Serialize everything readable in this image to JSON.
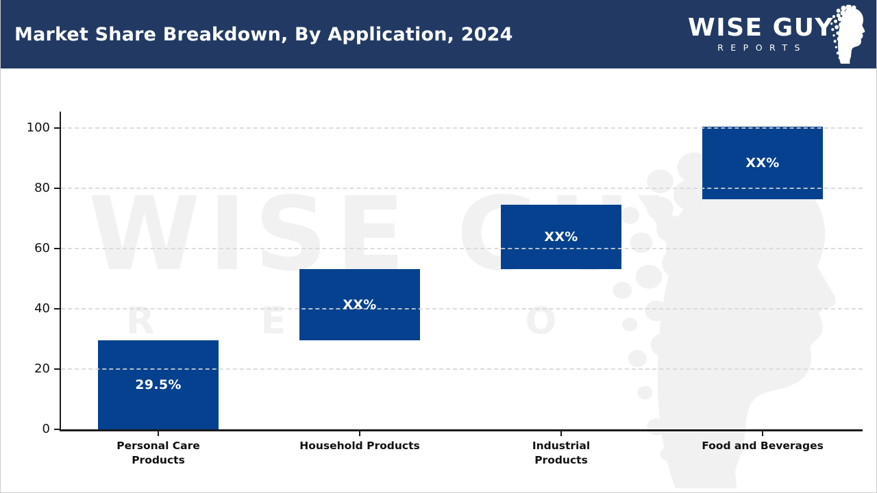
{
  "header": {
    "title": "Market Share Breakdown, By Application, 2024",
    "logo": {
      "line1": "WISE GUY",
      "line2": "REPORTS"
    }
  },
  "watermark": {
    "line1": "WISE GUY",
    "line2": "R E P O R T S"
  },
  "colors": {
    "header_bg": "#223a63",
    "bar_blue": "#05418e",
    "title_text": "#ffffff",
    "axis": "#1a1a1a",
    "watermark_gray": "#f1f1f2"
  },
  "chart_data": {
    "type": "bar",
    "variant": "floating_waterfall_segments",
    "title": "Market Share Breakdown, By Application, 2024",
    "categories": [
      "Personal Care\nProducts",
      "Household Products",
      "Industrial\nProducts",
      "Food and Beverages"
    ],
    "segments": [
      {
        "category": "Personal Care Products",
        "start": 0,
        "end": 29.5,
        "label": "29.5%"
      },
      {
        "category": "Household Products",
        "start": 29.5,
        "end": 53.1,
        "label": "XX%"
      },
      {
        "category": "Industrial Products",
        "start": 53.1,
        "end": 74.5,
        "label": "XX%"
      },
      {
        "category": "Food and Beverages",
        "start": 76.4,
        "end": 100.5,
        "label": "XX%"
      }
    ],
    "yticks": [
      0,
      20,
      40,
      60,
      80,
      100
    ],
    "ylim": [
      0,
      100
    ],
    "xlabel": "",
    "ylabel": "",
    "grid": "horizontal-dashed",
    "legend": "none",
    "bar_color": "#05418e"
  }
}
